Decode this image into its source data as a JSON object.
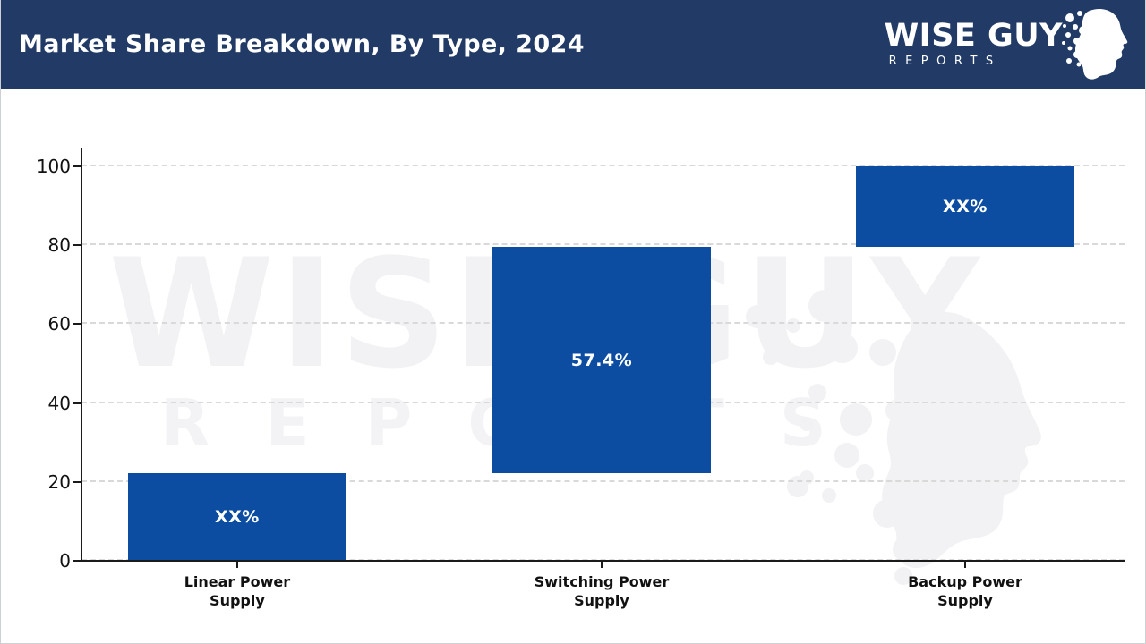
{
  "header": {
    "title": "Market Share Breakdown, By Type, 2024",
    "logo_line1": "WISE GUY",
    "logo_line2": "REPORTS"
  },
  "watermark": {
    "line1": "WISE GUY",
    "line2": "REPORTS"
  },
  "colors": {
    "header_bg": "#213a66",
    "bar_blue": "#0c4da2",
    "grid_gray": "#d9d9d9",
    "axis_black": "#1a1a1a",
    "bar_label_white": "#ffffff",
    "watermark_gray": "#f2f2f5"
  },
  "chart_data": {
    "type": "bar",
    "subtype": "waterfall-stacked-percent",
    "title": "Market Share Breakdown, By Type, 2024",
    "categories": [
      "Linear Power Supply",
      "Switching Power Supply",
      "Backup Power Supply"
    ],
    "category_lines": [
      [
        "Linear Power",
        "Supply"
      ],
      [
        "Switching Power",
        "Supply"
      ],
      [
        "Backup Power",
        "Supply"
      ]
    ],
    "segments": [
      {
        "start": 0,
        "end": 22.2,
        "label": "XX%"
      },
      {
        "start": 22.2,
        "end": 79.6,
        "label": "57.4%"
      },
      {
        "start": 79.6,
        "end": 100,
        "label": "XX%"
      }
    ],
    "values_displayed": [
      "XX%",
      "57.4%",
      "XX%"
    ],
    "xlabel": "",
    "ylabel": "",
    "ylim": [
      0,
      100
    ],
    "yticks": [
      0,
      20,
      40,
      60,
      80,
      100
    ],
    "grid": "horizontal-dashed",
    "legend": "none"
  }
}
